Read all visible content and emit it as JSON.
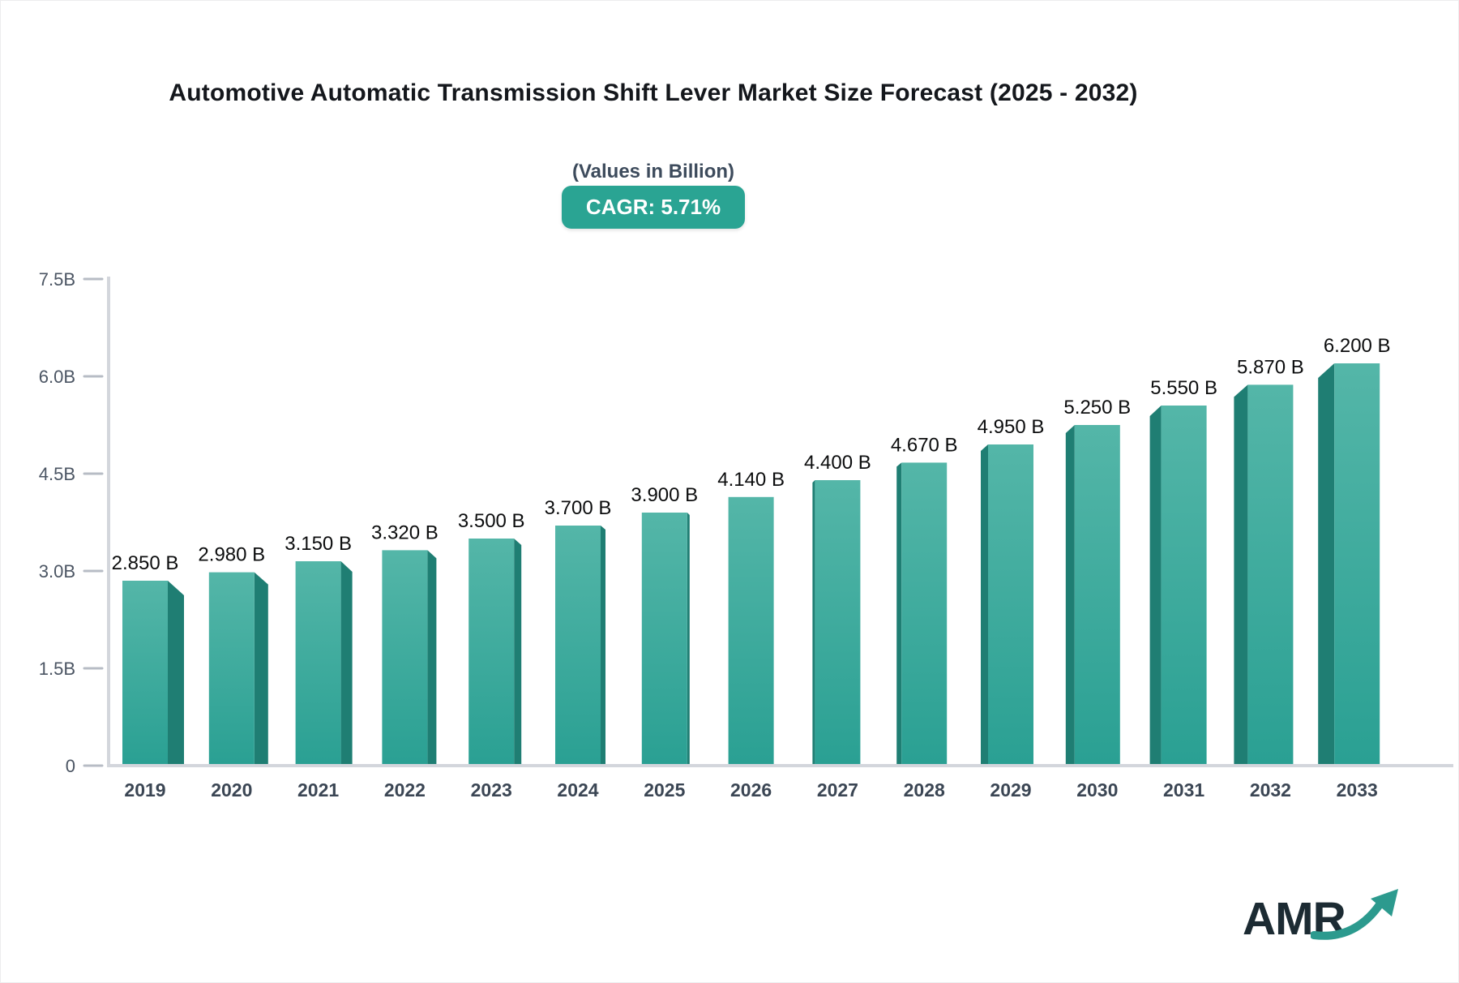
{
  "header": {
    "title": "Automotive Automatic Transmission Shift Lever Market Size Forecast (2025 - 2032)",
    "subtitle": "(Values in Billion)",
    "cagr_badge": "CAGR: 5.71%"
  },
  "logo": {
    "text": "AMR",
    "arrow_icon": "growth-arrow-icon"
  },
  "colors": {
    "bar_front_top": "#54b6a8",
    "bar_front_bottom": "#2aa093",
    "bar_side": "#1f7e73",
    "badge_bg": "#2aa493",
    "badge_text": "#ffffff",
    "axis_line": "#d3d6dc",
    "tick_dash": "#b7bcc5",
    "tick_label": "#4b5563",
    "year_label": "#3b4654",
    "value_label": "#0c0d0e",
    "title_text": "#14171c",
    "subtitle_text": "#3d4b5c",
    "logo_text": "#1c2b33",
    "logo_arrow": "#2c9a8e"
  },
  "chart_data": {
    "type": "bar",
    "title": "Automotive Automatic Transmission Shift Lever Market Size Forecast (2025 - 2032)",
    "subtitle": "(Values in Billion)",
    "annotation": "CAGR: 5.71%",
    "categories": [
      "2019",
      "2020",
      "2021",
      "2022",
      "2023",
      "2024",
      "2025",
      "2026",
      "2027",
      "2028",
      "2029",
      "2030",
      "2031",
      "2032",
      "2033"
    ],
    "values": [
      2.85,
      2.98,
      3.15,
      3.32,
      3.5,
      3.7,
      3.9,
      4.14,
      4.4,
      4.67,
      4.95,
      5.25,
      5.55,
      5.87,
      6.2
    ],
    "value_labels": [
      "2.850 B",
      "2.980 B",
      "3.150 B",
      "3.320 B",
      "3.500 B",
      "3.700 B",
      "3.900 B",
      "4.140 B",
      "4.400 B",
      "4.670 B",
      "4.950 B",
      "5.250 B",
      "5.550 B",
      "5.870 B",
      "6.200 B"
    ],
    "xlabel": "",
    "ylabel": "",
    "ylim": [
      0,
      7.5
    ],
    "yticks": [
      {
        "value": 7.5,
        "label": "7.5B"
      },
      {
        "value": 6.0,
        "label": "6.0B"
      },
      {
        "value": 4.5,
        "label": "4.5B"
      },
      {
        "value": 3.0,
        "label": "3.0B"
      },
      {
        "value": 1.5,
        "label": "1.5B"
      },
      {
        "value": 0,
        "label": "0"
      }
    ],
    "grid": false,
    "legend": "none",
    "bar_style": "3d-beveled"
  }
}
